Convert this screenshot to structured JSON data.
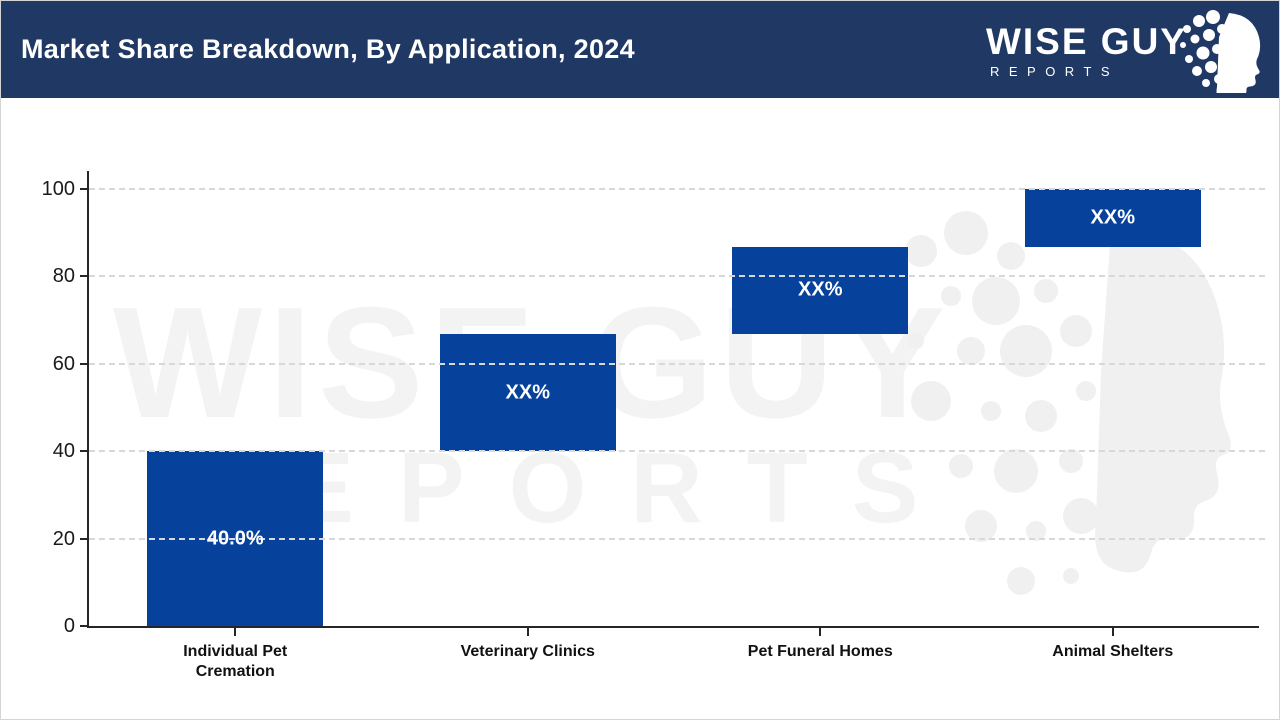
{
  "header": {
    "title": "Market Share Breakdown, By Application, 2024",
    "logo": {
      "line1": "WISE GUY",
      "line2": "REPORTS"
    }
  },
  "watermark": {
    "line1": "WISE GUY",
    "line2": "REPORTS"
  },
  "colors": {
    "header_bg": "#1f3864",
    "bar": "#06429c",
    "bar_label": "#ffffff",
    "grid": "#d8d8d8",
    "axis": "#262626",
    "watermark": "#f3f3f3",
    "page_border": "#d4d4d4"
  },
  "chart_data": {
    "type": "bar",
    "subtype": "waterfall",
    "title": "Market Share Breakdown, By Application, 2024",
    "categories": [
      "Individual Pet Cremation",
      "Veterinary Clinics",
      "Pet Funeral Homes",
      "Animal Shelters"
    ],
    "values": [
      40.0,
      26.7,
      20.0,
      13.3
    ],
    "bars": [
      {
        "category": "Individual Pet Cremation",
        "start": 0,
        "end": 40,
        "label": "40.0%"
      },
      {
        "category": "Veterinary Clinics",
        "start": 40,
        "end": 66.7,
        "label": "XX%"
      },
      {
        "category": "Pet Funeral Homes",
        "start": 66.7,
        "end": 86.7,
        "label": "XX%"
      },
      {
        "category": "Animal Shelters",
        "start": 86.7,
        "end": 100,
        "label": "XX%"
      }
    ],
    "xlabel": "",
    "ylabel": "",
    "ylim": [
      0,
      104
    ],
    "yticks": [
      0,
      20,
      40,
      60,
      80,
      100
    ],
    "grid": "horizontal-dashed",
    "legend": "none"
  }
}
